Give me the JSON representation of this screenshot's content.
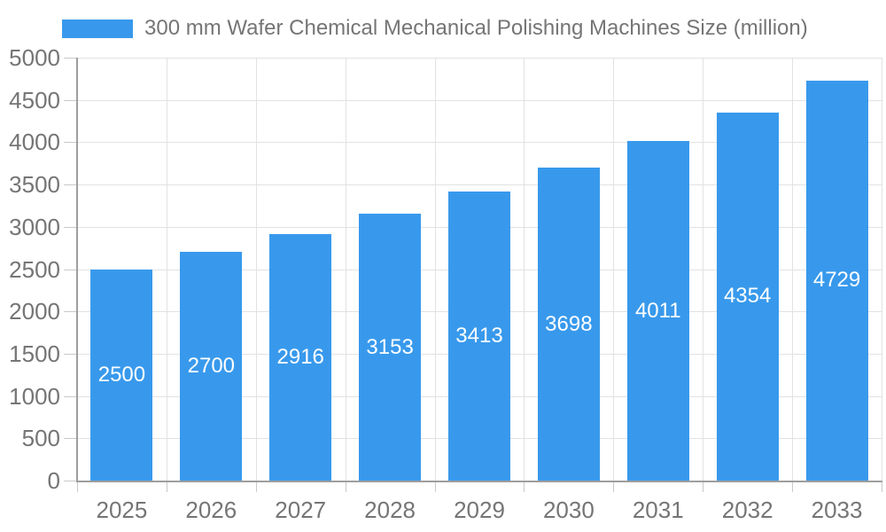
{
  "chart_data": {
    "type": "bar",
    "title": "",
    "legend": "300 mm Wafer Chemical Mechanical Polishing Machines Size (million)",
    "categories": [
      "2025",
      "2026",
      "2027",
      "2028",
      "2029",
      "2030",
      "2031",
      "2032",
      "2033"
    ],
    "values": [
      2500,
      2700,
      2916,
      3153,
      3413,
      3698,
      4011,
      4354,
      4729
    ],
    "xlabel": "",
    "ylabel": "",
    "ylim": [
      0,
      5000
    ],
    "ytick_step": 500,
    "yticks": [
      0,
      500,
      1000,
      1500,
      2000,
      2500,
      3000,
      3500,
      4000,
      4500,
      5000
    ],
    "grid": true,
    "legend_position": "top-left",
    "colors": {
      "bar": "#3899EC",
      "bar_label": "#FFFFFF",
      "axis_line": "#9E9E9E",
      "grid_line": "#E2E2E2",
      "tick_mark": "#C9C9C9",
      "text": "#757575",
      "background": "#FFFFFF"
    }
  }
}
